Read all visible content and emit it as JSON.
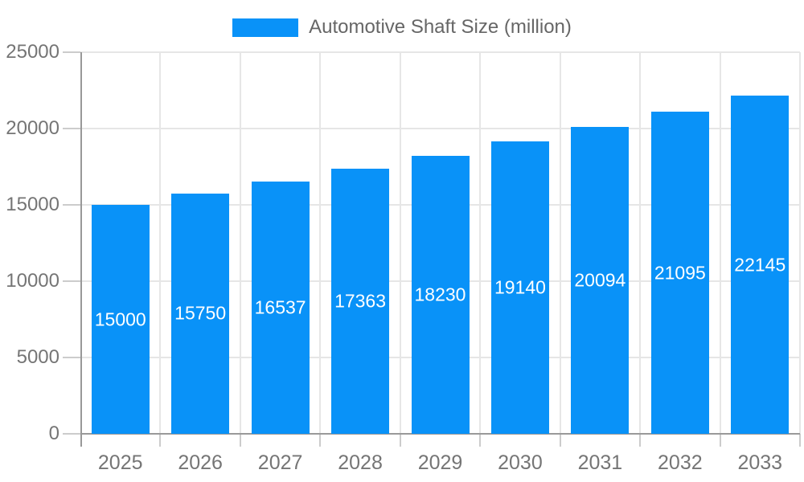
{
  "chart_data": {
    "type": "bar",
    "title": "",
    "legend": "Automotive Shaft Size (million)",
    "categories": [
      "2025",
      "2026",
      "2027",
      "2028",
      "2029",
      "2030",
      "2031",
      "2032",
      "2033"
    ],
    "values": [
      15000,
      15750,
      16537,
      17363,
      18230,
      19140,
      20094,
      21095,
      22145
    ],
    "value_labels": [
      "15000",
      "15750",
      "16537",
      "17363",
      "18230",
      "19140",
      "20094",
      "21095",
      "22145"
    ],
    "ylim": [
      0,
      25000
    ],
    "yticks": [
      0,
      5000,
      10000,
      15000,
      20000,
      25000
    ],
    "ytick_labels": [
      "0",
      "5000",
      "10000",
      "15000",
      "20000",
      "25000"
    ],
    "grid": "on",
    "legend_position": "top-center",
    "colors": {
      "bar": "#0992f8",
      "axis_line": "#999999",
      "tick": "#cccccc",
      "gridline": "#e6e6e6",
      "axis_text": "#757575",
      "legend_text": "#666666",
      "value_text": "#ffffff",
      "background": "#ffffff"
    }
  }
}
